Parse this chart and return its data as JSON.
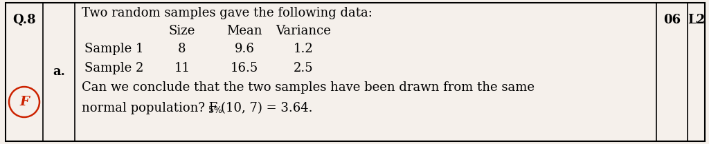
{
  "q_label": "Q.8",
  "sub_label": "a.",
  "title_text": "Two random samples gave the following data:",
  "col_headers": [
    "Size",
    "Mean",
    "Variance"
  ],
  "row1_label": "Sample 1",
  "row1_vals": [
    "8",
    "9.6",
    "1.2"
  ],
  "row2_label": "Sample 2",
  "row2_vals": [
    "11",
    "16.5",
    "2.5"
  ],
  "conclusion1": "Can we conclude that the two samples have been drawn from the same",
  "conclusion2_pre": "normal population? F",
  "conclusion2_sub": "5%",
  "conclusion2_post": "(10, 7) = 3.64.",
  "right_label1": "06",
  "right_label2": "L2",
  "circle_label": "F",
  "bg_color": "#f5f0eb",
  "border_color": "#000000",
  "text_color": "#000000",
  "red_color": "#cc2200",
  "font_size": 13,
  "font_size_small": 9
}
